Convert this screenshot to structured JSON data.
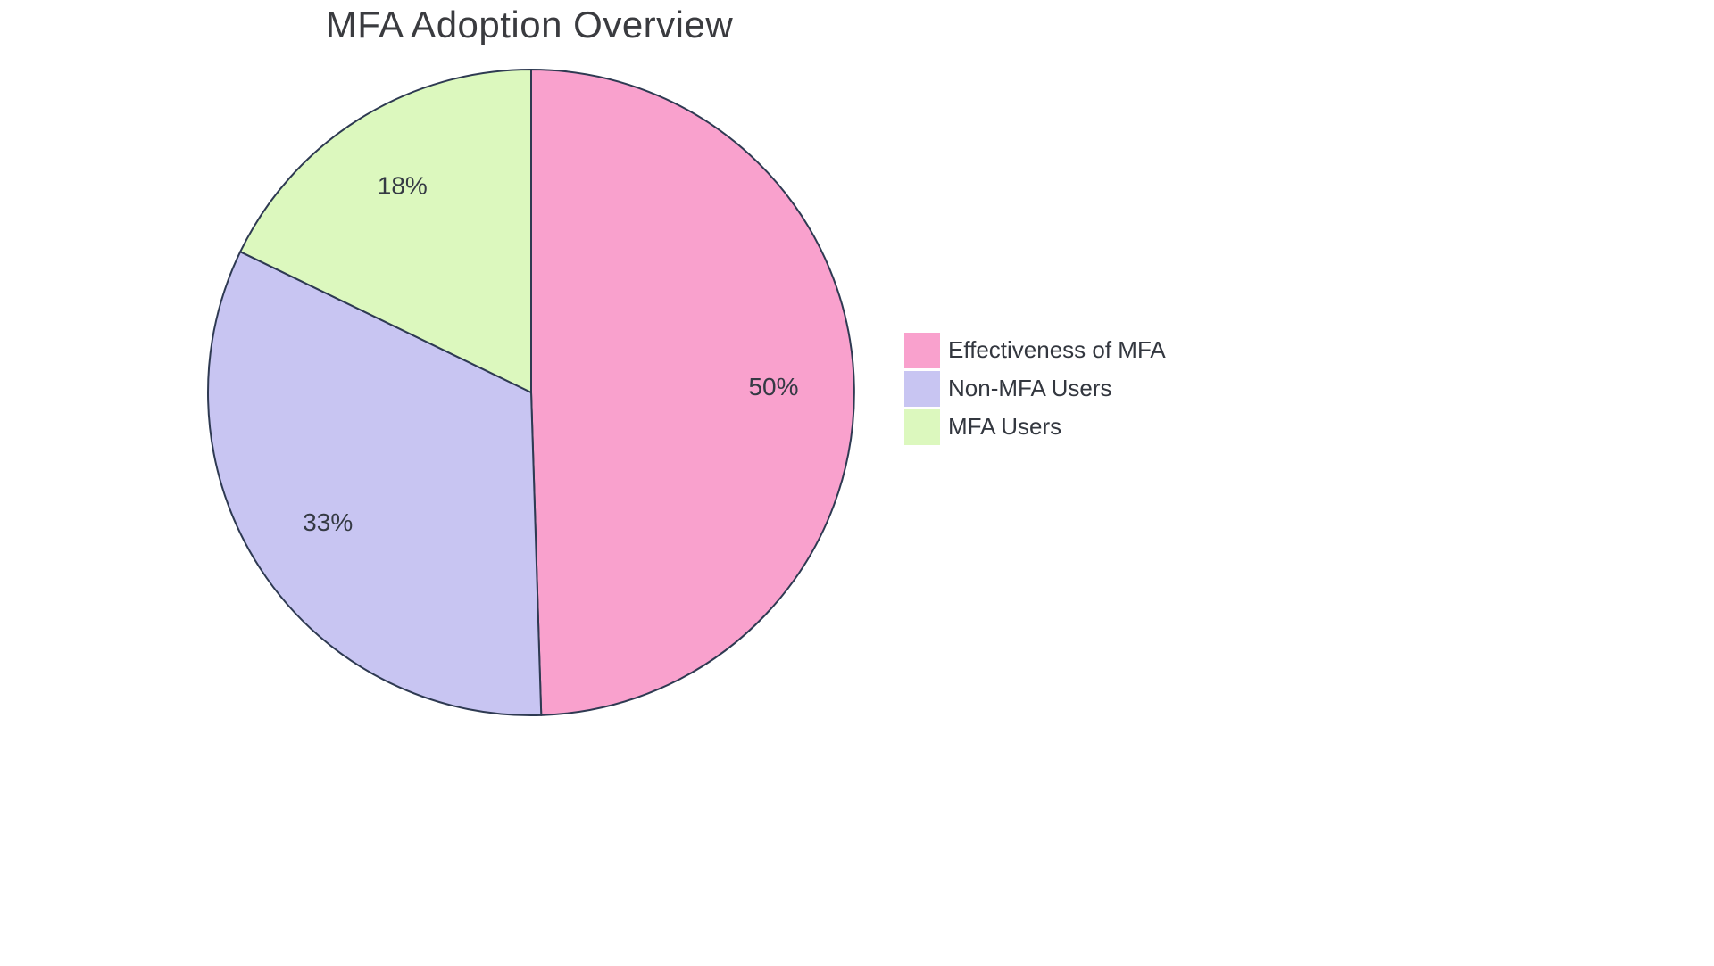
{
  "chart_data": {
    "type": "pie",
    "title": "MFA Adoption Overview",
    "slices": [
      {
        "label": "Effectiveness of MFA",
        "value": 50,
        "display_pct": "50%",
        "color": "#F9A1CD"
      },
      {
        "label": "Non-MFA Users",
        "value": 33,
        "display_pct": "33%",
        "color": "#C8C5F2"
      },
      {
        "label": "MFA Users",
        "value": 18,
        "display_pct": "18%",
        "color": "#DCF8BE"
      }
    ],
    "legend_position": "right",
    "start_angle_deg": -90,
    "direction": "clockwise",
    "stroke_color": "#2E3A52",
    "label_color": "#353A44",
    "title_color": "#3A3B3F",
    "background_color": "#FFFFFF"
  }
}
